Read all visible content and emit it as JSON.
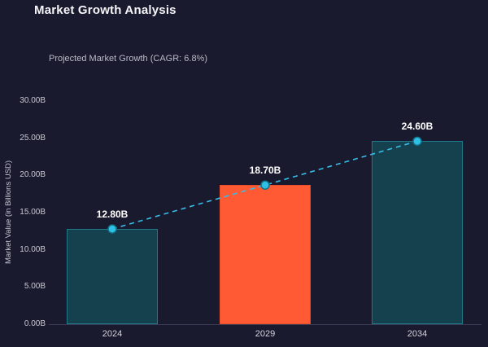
{
  "title": "Market Growth Analysis",
  "subtitle": "Projected Market Growth (CAGR: 6.8%)",
  "colors": {
    "background": "#1a1a2e",
    "teal_fill": "#15404e",
    "teal_border": "#1f7a8c",
    "orange_fill": "#ff5a33",
    "orange_border": "#e64d29",
    "trend_line": "#38bde8",
    "marker_fill": "#2fc1e3",
    "marker_stroke": "#137189",
    "title_text": "#f5f5f8",
    "muted_text": "#b9b9c6",
    "tick_text": "#c8c8d4",
    "axis_line": "#3a3a55"
  },
  "chart_data": {
    "type": "bar",
    "title": "Market Growth Analysis",
    "subtitle": "Projected Market Growth (CAGR: 6.8%)",
    "categories": [
      "2024",
      "2029",
      "2034"
    ],
    "values": [
      12.8,
      18.7,
      24.6
    ],
    "value_labels": [
      "12.80B",
      "18.70B",
      "24.60B"
    ],
    "bar_colors": [
      "teal",
      "orange",
      "teal"
    ],
    "xlabel": "",
    "ylabel": "Market Value (in Billions USD)",
    "ylim": [
      0,
      30
    ],
    "y_tick_step": 5,
    "y_ticks": [
      "0.00B",
      "5.00B",
      "10.00B",
      "15.00B",
      "20.00B",
      "25.00B",
      "30.00B"
    ],
    "grid": false,
    "legend": false,
    "trend_line": true
  }
}
